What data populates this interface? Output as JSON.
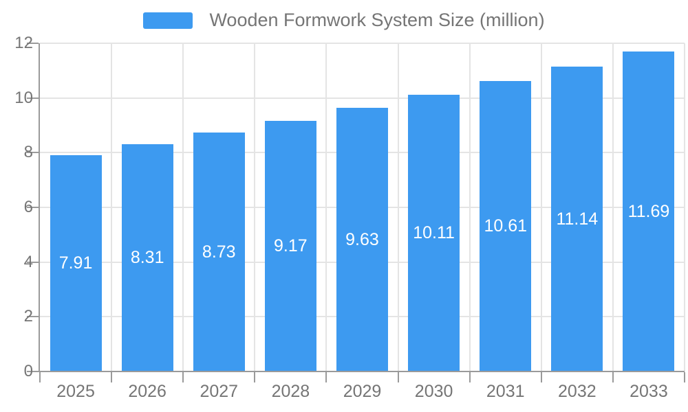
{
  "colors": {
    "bar": "#3d9af0",
    "grid": "#e4e4e4",
    "axis": "#9a9a9a",
    "tick_label": "#757575",
    "value_label": "#ffffff",
    "background": "#ffffff"
  },
  "chart_data": {
    "type": "bar",
    "title": "",
    "legend": "Wooden Formwork System Size (million)",
    "legend_position": "top",
    "categories": [
      "2025",
      "2026",
      "2027",
      "2028",
      "2029",
      "2030",
      "2031",
      "2032",
      "2033"
    ],
    "values": [
      7.91,
      8.31,
      8.73,
      9.17,
      9.63,
      10.11,
      10.61,
      11.14,
      11.69
    ],
    "value_labels": [
      "7.91",
      "8.31",
      "8.73",
      "9.17",
      "9.63",
      "10.11",
      "10.61",
      "11.14",
      "11.69"
    ],
    "xlabel": "",
    "ylabel": "",
    "ylim": [
      0,
      12
    ],
    "yticks": [
      0,
      2,
      4,
      6,
      8,
      10,
      12
    ],
    "grid": "horizontal and vertical light gray gridlines"
  }
}
